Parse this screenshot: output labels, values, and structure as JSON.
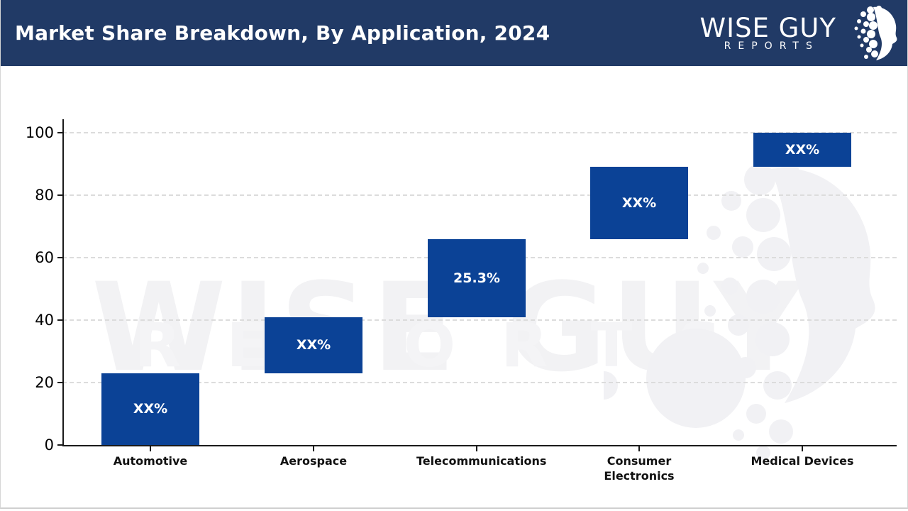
{
  "header": {
    "title": "Market Share Breakdown, By Application, 2024",
    "bg_color": "#213a66",
    "logo": {
      "line1": "WISE GUY",
      "line2": "REPORTS"
    }
  },
  "watermark": {
    "line1": "WISE GUY",
    "line2": "REPORTS"
  },
  "chart_data": {
    "type": "bar",
    "subtype": "floating-segment-waterfall",
    "title": "Market Share Breakdown, By Application, 2024",
    "xlabel": "",
    "ylabel": "",
    "categories": [
      "Automotive",
      "Aerospace",
      "Telecommunications",
      "Consumer Electronics",
      "Medical Devices"
    ],
    "segments": [
      {
        "category": "Automotive",
        "start": 0,
        "end": 23,
        "label": "XX%"
      },
      {
        "category": "Aerospace",
        "start": 23,
        "end": 41,
        "label": "XX%"
      },
      {
        "category": "Telecommunications",
        "start": 41,
        "end": 66,
        "label": "25.3%"
      },
      {
        "category": "Consumer Electronics",
        "start": 66,
        "end": 89,
        "label": "XX%"
      },
      {
        "category": "Medical Devices",
        "start": 89,
        "end": 100,
        "label": "XX%"
      }
    ],
    "y_ticks": [
      0,
      20,
      40,
      60,
      80,
      100
    ],
    "ylim": [
      0,
      104
    ],
    "grid": "horizontal-dashed",
    "legend": "none",
    "bar_color": "#0b4296",
    "bar_label_color": "#ffffff",
    "axis_color": "#1a1a1a",
    "gridline_color": "#dcdcdc"
  }
}
